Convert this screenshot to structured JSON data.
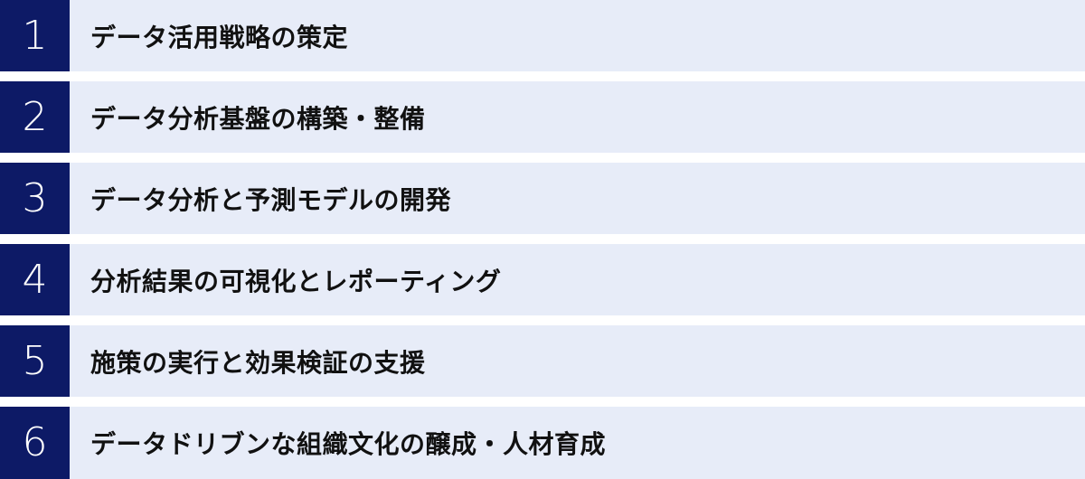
{
  "colors": {
    "number_box": "#0d1a66",
    "row_background": "#e7ecf8",
    "number_text": "#ffffff",
    "label_text": "#111111",
    "gap": "#ffffff"
  },
  "list": {
    "items": [
      {
        "number": "1",
        "label": "データ活用戦略の策定"
      },
      {
        "number": "2",
        "label": "データ分析基盤の構築・整備"
      },
      {
        "number": "3",
        "label": "データ分析と予測モデルの開発"
      },
      {
        "number": "4",
        "label": "分析結果の可視化とレポーティング"
      },
      {
        "number": "5",
        "label": "施策の実行と効果検証の支援"
      },
      {
        "number": "6",
        "label": "データドリブンな組織文化の醸成・人材育成"
      }
    ]
  }
}
